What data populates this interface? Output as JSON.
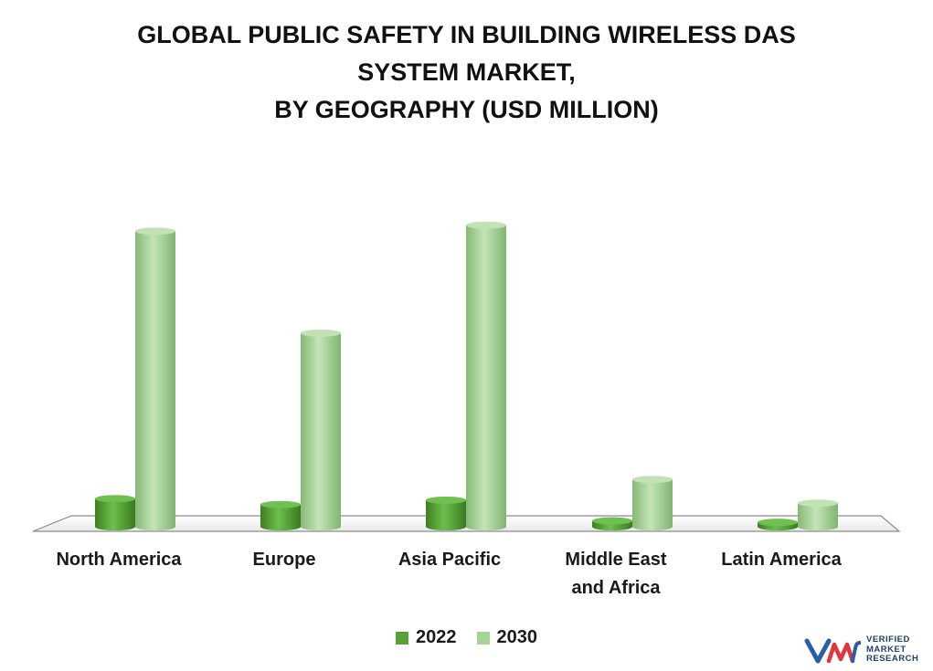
{
  "title_lines": [
    "GLOBAL PUBLIC SAFETY IN BUILDING WIRELESS DAS",
    "SYSTEM MARKET,",
    "BY GEOGRAPHY (USD MILLION)"
  ],
  "chart_data": {
    "type": "bar",
    "categories": [
      "North America",
      "Europe",
      "Asia Pacific",
      "Middle East and Africa",
      "Latin America"
    ],
    "category_label_lines": [
      [
        "North America"
      ],
      [
        "Europe"
      ],
      [
        "Asia Pacific"
      ],
      [
        "Middle East",
        "and Africa"
      ],
      [
        "Latin America"
      ]
    ],
    "series": [
      {
        "name": "2022",
        "values": [
          9.5,
          7.5,
          9.0,
          2.0,
          1.5
        ]
      },
      {
        "name": "2030",
        "values": [
          100,
          65.5,
          102,
          16,
          8
        ]
      }
    ],
    "ylim": [
      0,
      105
    ],
    "grid": false,
    "legend_position": "bottom"
  },
  "colors": {
    "series_2022": "#56a236",
    "series_2030": "#a6d396",
    "floor": "#ffffff",
    "floor_edge": "#8c8c8c"
  },
  "legend": [
    {
      "label": "2022",
      "color": "#56a236"
    },
    {
      "label": "2030",
      "color": "#a6d396"
    }
  ],
  "logo": {
    "icon": "vmr-logo-icon",
    "lines": [
      "VERIFIED",
      "MARKET",
      "RESEARCH"
    ]
  }
}
